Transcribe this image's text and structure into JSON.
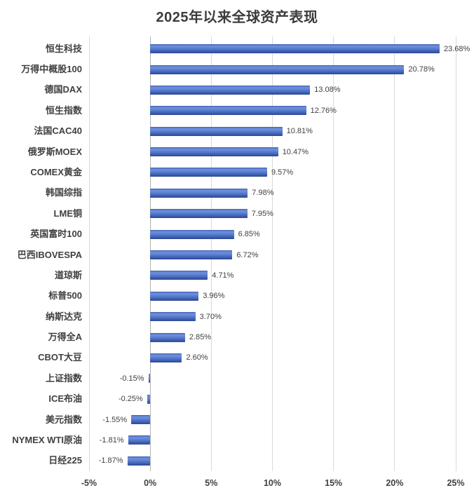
{
  "chart_data": {
    "type": "bar",
    "orientation": "horizontal",
    "title": "2025年以来全球资产表现",
    "categories": [
      "恒生科技",
      "万得中概股100",
      "德国DAX",
      "恒生指数",
      "法国CAC40",
      "俄罗斯MOEX",
      "COMEX黄金",
      "韩国综指",
      "LME铜",
      "英国富时100",
      "巴西IBOVESPA",
      "道琼斯",
      "标普500",
      "纳斯达克",
      "万得全A",
      "CBOT大豆",
      "上证指数",
      "ICE布油",
      "美元指数",
      "NYMEX WTI原油",
      "日经225"
    ],
    "values": [
      23.68,
      20.78,
      13.08,
      12.76,
      10.81,
      10.47,
      9.57,
      7.98,
      7.95,
      6.85,
      6.72,
      4.71,
      3.96,
      3.7,
      2.85,
      2.6,
      -0.15,
      -0.25,
      -1.55,
      -1.81,
      -1.87
    ],
    "value_labels": [
      "23.68%",
      "20.78%",
      "13.08%",
      "12.76%",
      "10.81%",
      "10.47%",
      "9.57%",
      "7.98%",
      "7.95%",
      "6.85%",
      "6.72%",
      "4.71%",
      "3.96%",
      "3.70%",
      "2.85%",
      "2.60%",
      "-0.15%",
      "-0.25%",
      "-1.55%",
      "-1.81%",
      "-1.87%"
    ],
    "xlabel": "",
    "ylabel": "",
    "xlim": [
      -5,
      25
    ],
    "x_tick_values": [
      -5,
      0,
      5,
      10,
      15,
      20,
      25
    ],
    "x_tick_labels": [
      "-5%",
      "0%",
      "5%",
      "10%",
      "15%",
      "20%",
      "25%"
    ],
    "grid": true,
    "legend": false,
    "colors": {
      "bar": "#4472C4",
      "bar_gradient_light": "#6D8EDB",
      "bar_gradient_dark": "#2E4B96",
      "gridline": "#D9D9D9",
      "zero_axis": "#B3B3B3",
      "text": "#404040",
      "background": "#FFFFFF"
    }
  }
}
